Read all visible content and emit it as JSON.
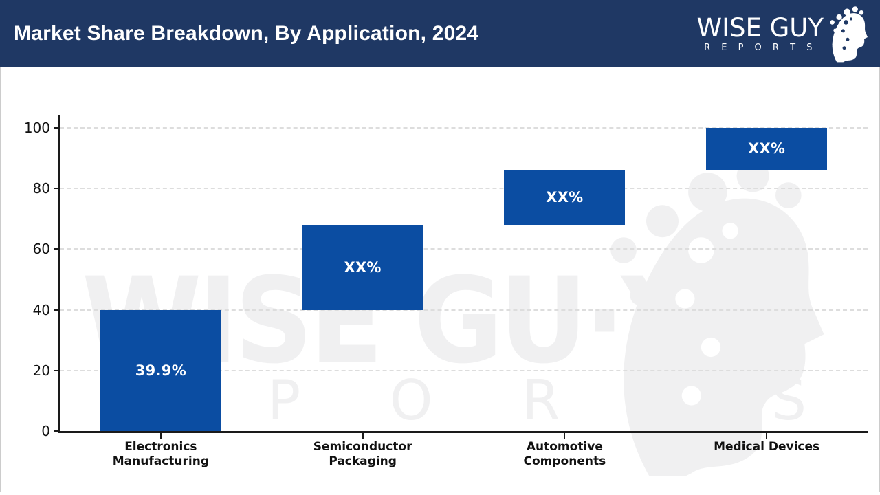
{
  "header": {
    "title": "Market Share Breakdown, By Application, 2024",
    "bg_color": "#1f3864",
    "logo": {
      "line1": "WISE GUY",
      "line2": "R E P O R T S"
    }
  },
  "watermark": {
    "line1": "WISE GU·Y",
    "line2": "P O R T S"
  },
  "chart_data": {
    "type": "bar",
    "subtype": "waterfall",
    "title": "Market Share Breakdown, By Application, 2024",
    "xlabel": "",
    "ylabel": "",
    "categories": [
      [
        "Electronics",
        "Manufacturing"
      ],
      [
        "Semiconductor",
        "Packaging"
      ],
      [
        "Automotive",
        "Components"
      ],
      [
        "Medical Devices"
      ]
    ],
    "bars": [
      {
        "label": "39.9%",
        "start": 0,
        "end": 39.9
      },
      {
        "label": "XX%",
        "start": 39.9,
        "end": 68
      },
      {
        "label": "XX%",
        "start": 68,
        "end": 86.2
      },
      {
        "label": "XX%",
        "start": 86.2,
        "end": 100
      }
    ],
    "yticks": [
      0,
      20,
      40,
      60,
      80,
      100
    ],
    "ylim": [
      0,
      103
    ],
    "grid": true,
    "legend": false,
    "colors": {
      "bar": "#0b4da2",
      "grid": "#dddddd",
      "axis": "#1a1a1a",
      "tick_text": "#111111",
      "bar_label_text": "#ffffff"
    }
  }
}
